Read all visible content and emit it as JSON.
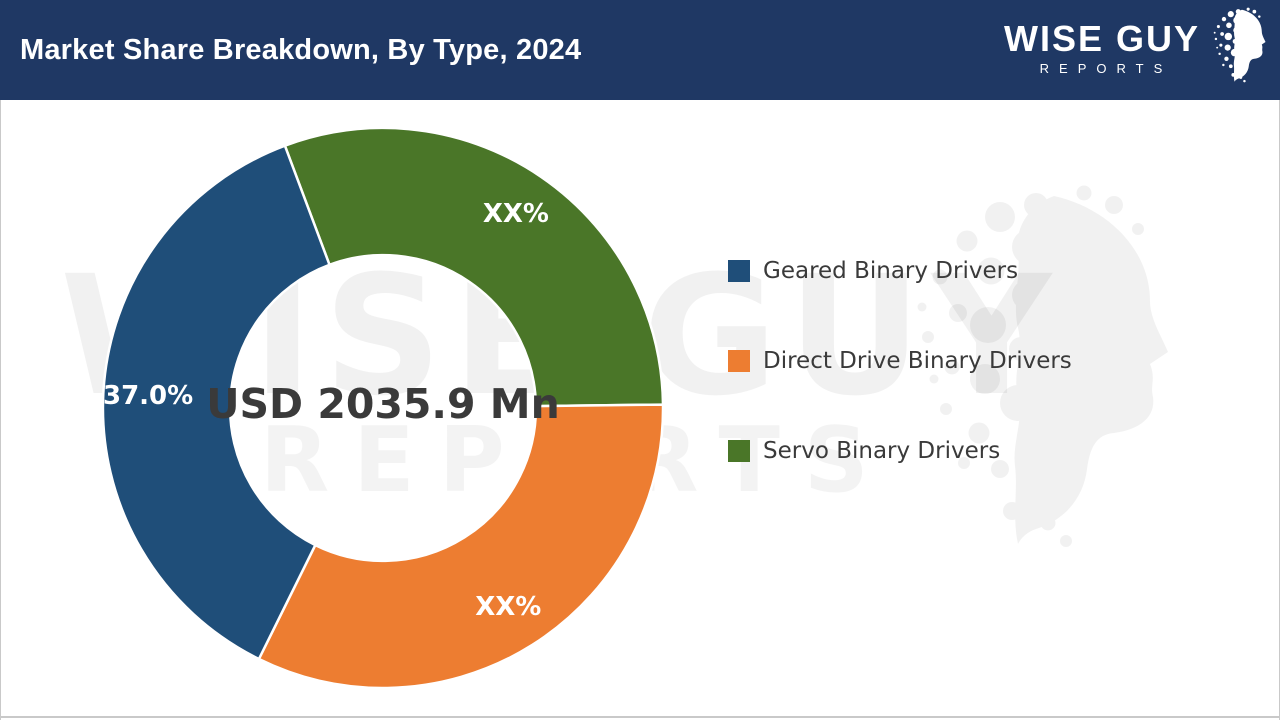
{
  "header": {
    "title": "Market Share Breakdown, By Type, 2024",
    "logo_line1": "WISE GUY",
    "logo_line2": "REPORTS"
  },
  "watermark": {
    "line1": "WISE GUY",
    "line2": "REPORTS"
  },
  "colors": {
    "header_bg": "#1f3864",
    "legend_text": "#3a3a3a",
    "center_text": "#3a3a3a",
    "slice_gap": "#ffffff"
  },
  "chart_data": {
    "type": "pie",
    "subtype": "donut",
    "title": "Market Share Breakdown, By Type, 2024",
    "center_label": "USD 2035.9 Mn",
    "legend_position": "right",
    "start_angle_deg": -20.5,
    "inner_radius_ratio": 0.546,
    "slices": [
      {
        "name": "Geared Binary Drivers",
        "value": 37.0,
        "label": "37.0%",
        "color": "#1f4e79"
      },
      {
        "name": "Direct Drive Binary Drivers",
        "value": 32.5,
        "label": "XX%",
        "color": "#ed7d31"
      },
      {
        "name": "Servo Binary Drivers",
        "value": 30.5,
        "label": "XX%",
        "color": "#4a7628"
      }
    ]
  }
}
